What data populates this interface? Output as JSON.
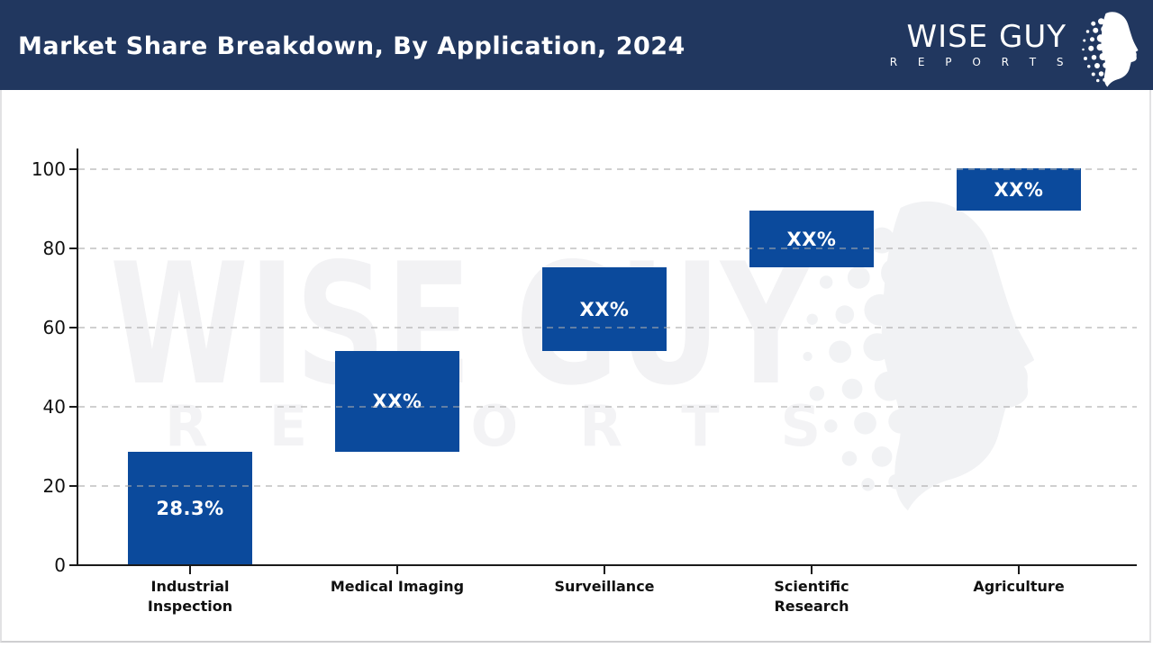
{
  "header": {
    "title": "Market Share Breakdown, By Application, 2024",
    "bg_color": "#21375f",
    "logo": {
      "line1": "WISE GUY",
      "line2": "R E P O R T S"
    }
  },
  "watermark": {
    "line1": "WISE GUY",
    "line2": "REPORTS"
  },
  "chart_data": {
    "type": "bar",
    "subtype": "waterfall",
    "title": "Market Share Breakdown, By Application, 2024",
    "categories": [
      "Industrial Inspection",
      "Medical Imaging",
      "Surveillance",
      "Scientific Research",
      "Agriculture"
    ],
    "segments": [
      {
        "category": "Industrial Inspection",
        "start": 0,
        "end": 28.3,
        "value": 28.3,
        "label": "28.3%"
      },
      {
        "category": "Medical Imaging",
        "start": 28.3,
        "end": 53.8,
        "value": 25.5,
        "label": "XX%"
      },
      {
        "category": "Surveillance",
        "start": 53.8,
        "end": 75.0,
        "value": 21.2,
        "label": "XX%"
      },
      {
        "category": "Scientific Research",
        "start": 75.0,
        "end": 89.3,
        "value": 14.3,
        "label": "XX%"
      },
      {
        "category": "Agriculture",
        "start": 89.3,
        "end": 100.0,
        "value": 10.7,
        "label": "XX%"
      }
    ],
    "bar_labels": [
      "28.3%",
      "XX%",
      "XX%",
      "XX%",
      "XX%"
    ],
    "yticks": [
      0,
      20,
      40,
      60,
      80,
      100
    ],
    "ylim": [
      0,
      105
    ],
    "xlabel": "",
    "ylabel": "",
    "bar_color": "#0b4a9c",
    "grid": "horizontal-dashed",
    "legend": "none"
  }
}
